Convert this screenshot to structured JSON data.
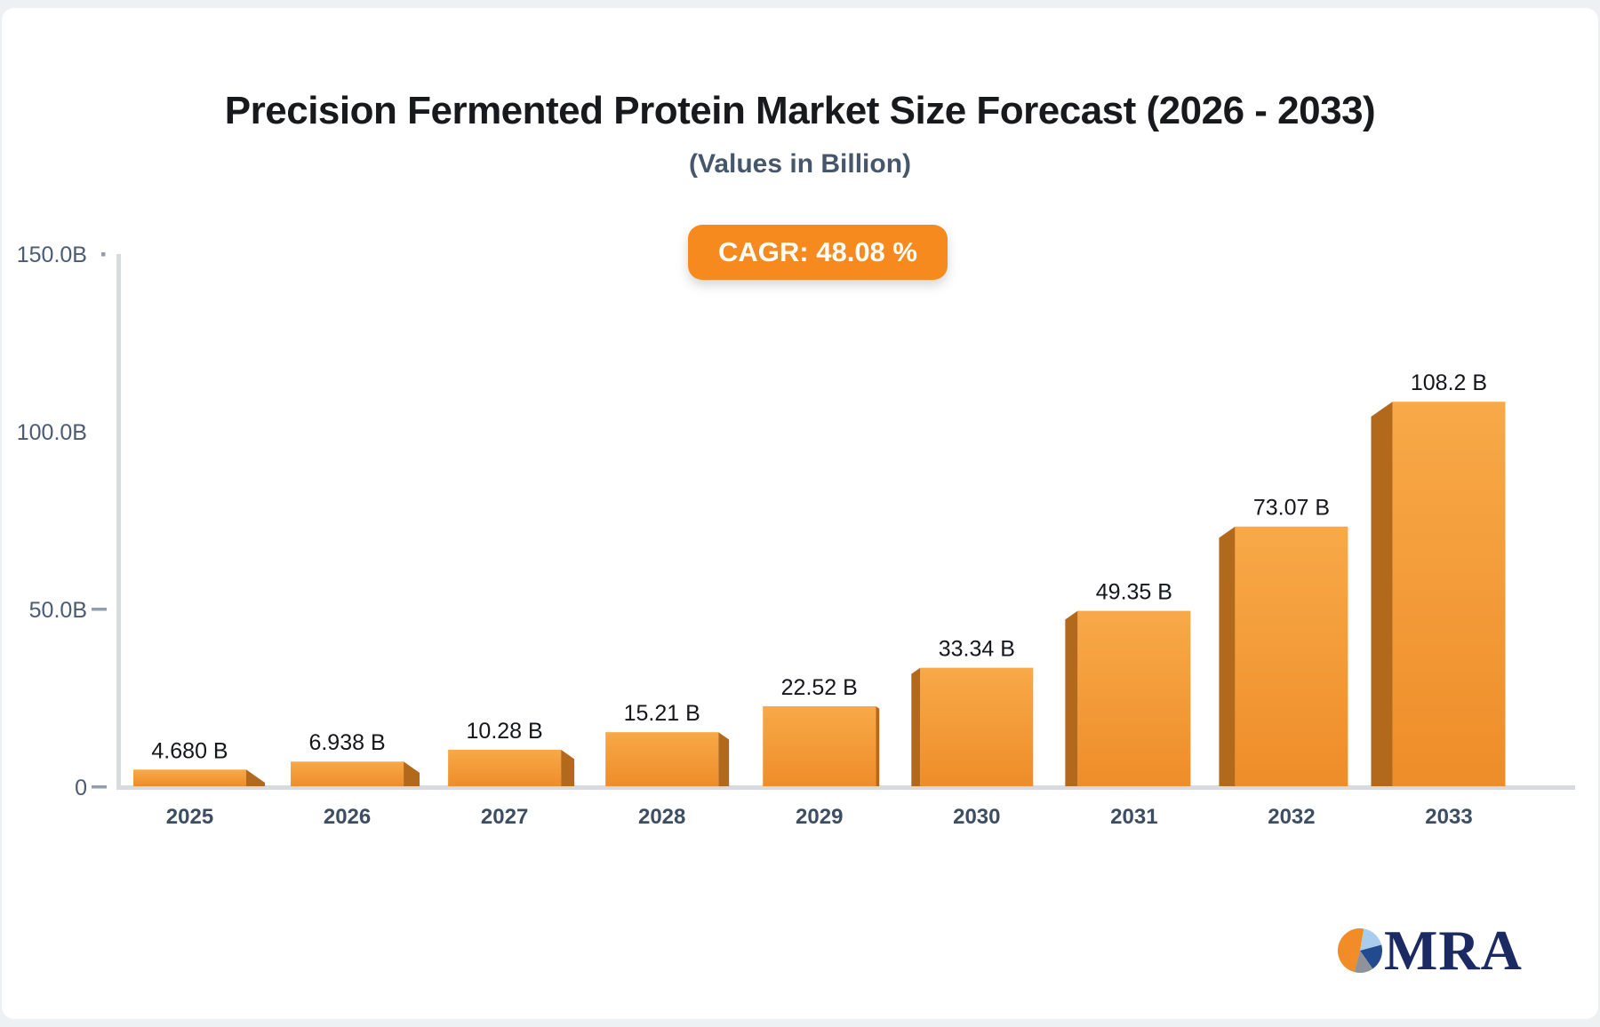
{
  "title": "Precision Fermented Protein Market Size Forecast (2026 - 2033)",
  "subtitle": "(Values in Billion)",
  "badge": {
    "label": "CAGR: 48.08 %"
  },
  "chart_data": {
    "type": "bar",
    "title": "Precision Fermented Protein Market Size Forecast (2026 - 2033)",
    "subtitle": "(Values in Billion)",
    "cagr_label": "CAGR: 48.08 %",
    "categories": [
      "2025",
      "2026",
      "2027",
      "2028",
      "2029",
      "2030",
      "2031",
      "2032",
      "2033"
    ],
    "values": [
      4.68,
      6.938,
      10.28,
      15.21,
      22.52,
      33.34,
      49.35,
      73.07,
      108.2
    ],
    "value_labels": [
      "4.680 B",
      "6.938 B",
      "10.28 B",
      "15.21 B",
      "22.52 B",
      "33.34 B",
      "49.35 B",
      "73.07 B",
      "108.2 B"
    ],
    "unit": "Billion USD",
    "ylim": [
      0,
      150
    ],
    "y_ticks": [
      {
        "label": "150.0B",
        "value": 150,
        "mark": "dot"
      },
      {
        "label": "100.0B",
        "value": 100,
        "mark": "none"
      },
      {
        "label": "50.0B",
        "value": 50,
        "mark": "dash"
      },
      {
        "label": "0",
        "value": 0,
        "mark": "dash"
      }
    ],
    "grid": false,
    "legend": false,
    "bar_color_top": "#f8a948",
    "bar_color_bottom": "#ee8d29",
    "bar_side_color": "#b2691c",
    "axis_color": "#d7dade",
    "tick_color": "#939dac"
  },
  "logo": {
    "text": "MRA",
    "text_color": "#1b2a63",
    "pie_colors": {
      "orange": "#f28c28",
      "light_blue": "#a9cdec",
      "navy": "#224a8f",
      "gray": "#8f9399"
    }
  }
}
